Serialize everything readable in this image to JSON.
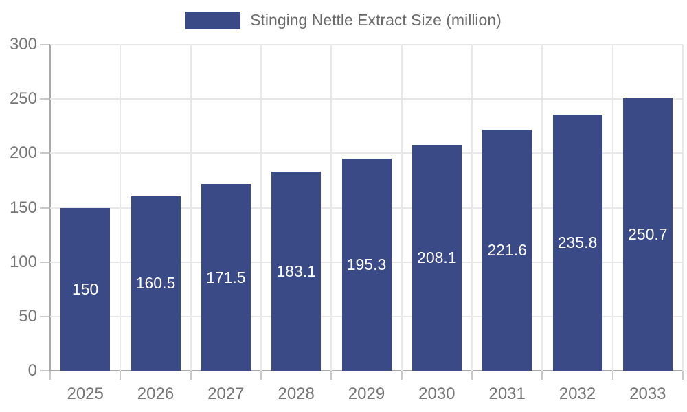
{
  "legend": {
    "label": "Stinging Nettle Extract Size (million)"
  },
  "colors": {
    "bar": "#3a4a86",
    "bar_label": "#ffffff",
    "grid_line": "#e8e8e8",
    "axis_line": "#a9a9a9",
    "tick_mark": "#c8c8c8",
    "tick_text": "#757575",
    "legend_text": "#6a6a6a",
    "background": "#ffffff"
  },
  "chart_data": {
    "type": "bar",
    "title": "Stinging Nettle Extract Size (million)",
    "categories": [
      "2025",
      "2026",
      "2027",
      "2028",
      "2029",
      "2030",
      "2031",
      "2032",
      "2033"
    ],
    "values": [
      150,
      160.5,
      171.5,
      183.1,
      195.3,
      208.1,
      221.6,
      235.8,
      250.7
    ],
    "value_labels": [
      "150",
      "160.5",
      "171.5",
      "183.1",
      "195.3",
      "208.1",
      "221.6",
      "235.8",
      "250.7"
    ],
    "xlabel": "",
    "ylabel": "",
    "ylim": [
      0,
      300
    ],
    "yticks": [
      0,
      50,
      100,
      150,
      200,
      250,
      300
    ],
    "grid": true,
    "legend_position": "top",
    "value_label_position": "center-inside",
    "bar_color": "#3a4a86"
  }
}
